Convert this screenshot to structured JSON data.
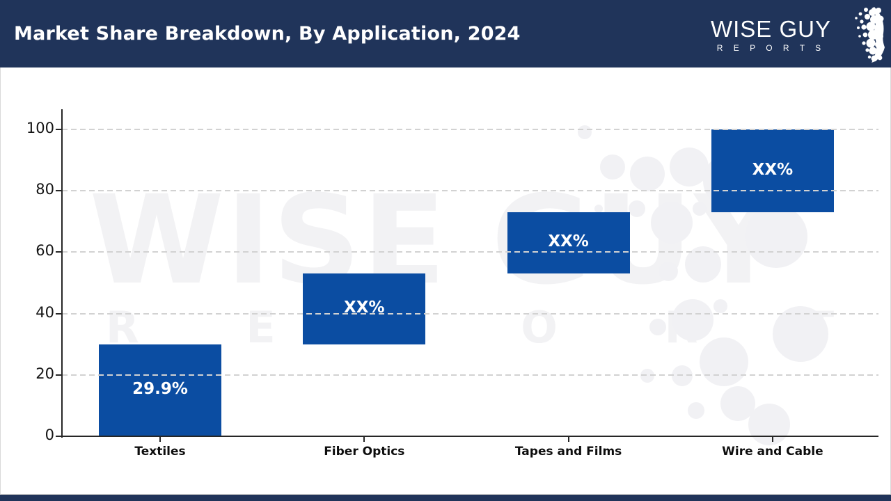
{
  "header": {
    "title": "Market Share Breakdown, By Application, 2024",
    "logo": {
      "name": "WISE GUY",
      "tagline": "R E P O R T S"
    }
  },
  "watermark": {
    "brand": "WISE GUY",
    "tagline": "R E P O R T S"
  },
  "chart_data": {
    "type": "waterfall",
    "title": "Market Share Breakdown, By Application, 2024",
    "categories": [
      "Textiles",
      "Fiber Optics",
      "Tapes and Films",
      "Wire and Cable"
    ],
    "segments": [
      {
        "category": "Textiles",
        "start": 0,
        "end": 29.9,
        "label": "29.9%"
      },
      {
        "category": "Fiber Optics",
        "start": 29.9,
        "end": 53,
        "label": "XX%"
      },
      {
        "category": "Tapes and Films",
        "start": 53,
        "end": 73,
        "label": "XX%"
      },
      {
        "category": "Wire and Cable",
        "start": 73,
        "end": 100,
        "label": "XX%"
      }
    ],
    "ylim": [
      0,
      100
    ],
    "yticks": [
      0,
      20,
      40,
      60,
      80,
      100
    ],
    "grid": "horizontal-dashed",
    "legend": "none",
    "bar_color": "#0B4DA2",
    "bar_label_color": "#FFFFFF"
  },
  "colors": {
    "header_bg": "#20345A",
    "footer_bg": "#20345A",
    "bar": "#0B4DA2",
    "gridline": "#D2D2D2",
    "axis": "#262626",
    "watermark": "#F2F2F4"
  }
}
